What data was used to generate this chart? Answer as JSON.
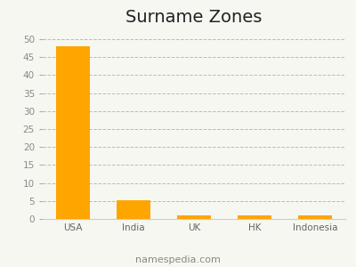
{
  "title": "Surname Zones",
  "categories": [
    "USA",
    "India",
    "UK",
    "HK",
    "Indonesia"
  ],
  "values": [
    48,
    5.2,
    1.1,
    1.1,
    1.1
  ],
  "bar_color": "#FFA500",
  "ylim": [
    0,
    52
  ],
  "yticks": [
    0,
    5,
    10,
    15,
    20,
    25,
    30,
    35,
    40,
    45,
    50
  ],
  "background_color": "#f7f7f2",
  "grid_color": "#bbbbbb",
  "title_fontsize": 14,
  "tick_fontsize": 7.5,
  "watermark": "namespedia.com",
  "watermark_fontsize": 8
}
